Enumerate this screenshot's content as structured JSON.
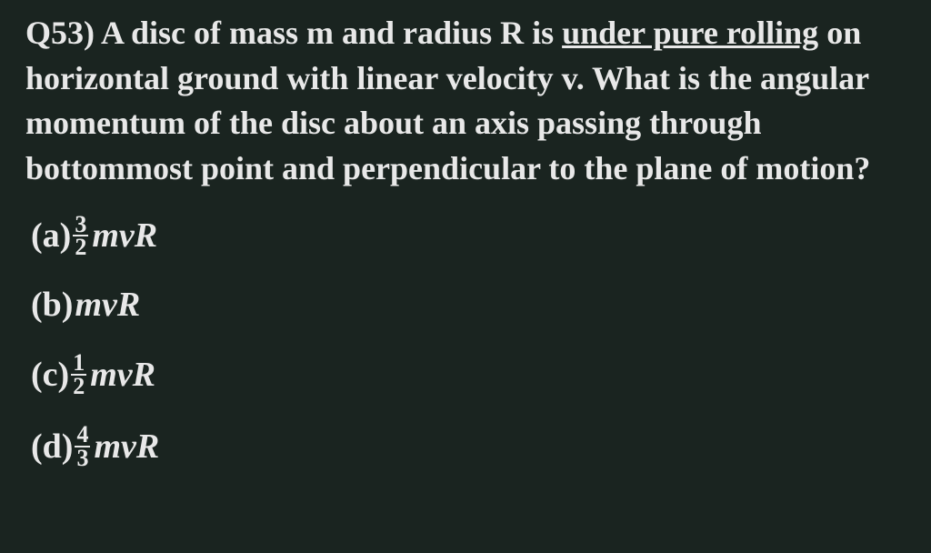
{
  "question": {
    "prefix": "Q53) A disc of mass m and radius R is ",
    "underlined": "under pure rolling",
    "suffix": " on horizontal ground with linear velocity v. What is the angular momentum of the disc about an axis passing through bottommost point and perpendicular to the plane of motion?"
  },
  "options": [
    {
      "label": "(a)",
      "num": "3",
      "den": "2",
      "term": "mvR"
    },
    {
      "label": "(b)",
      "num": "",
      "den": "",
      "term": "mvR"
    },
    {
      "label": "(c)",
      "num": "1",
      "den": "2",
      "term": "mvR"
    },
    {
      "label": "(d)",
      "num": "4",
      "den": "3",
      "term": "mvR"
    }
  ],
  "style": {
    "background": "#1a2420",
    "text_color": "#e8e8e8",
    "question_fontsize": 36,
    "option_fontsize": 38,
    "frac_fontsize": 26
  }
}
